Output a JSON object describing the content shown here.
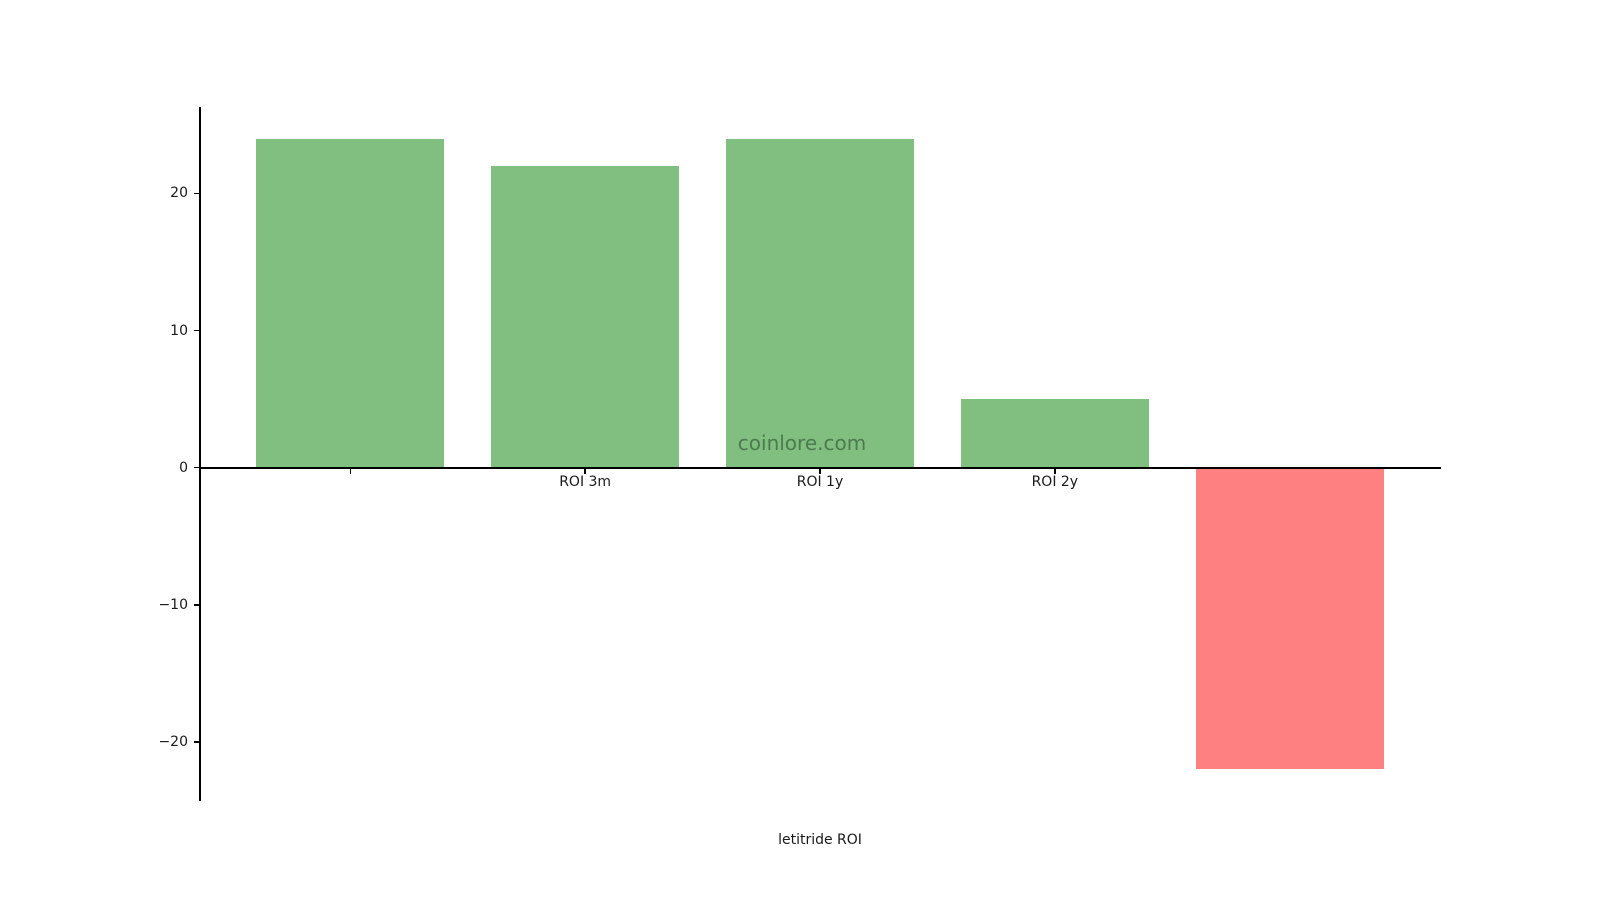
{
  "watermark": "coinlore.com",
  "chart_data": {
    "type": "bar",
    "title": "letitride ROI",
    "categories": [
      "",
      "ROI 3m",
      "ROI 1y",
      "ROI 2y",
      ""
    ],
    "values": [
      24,
      22,
      24,
      5,
      -22
    ],
    "bar_colors": [
      "#80bf80",
      "#80bf80",
      "#80bf80",
      "#80bf80",
      "#ff8080"
    ],
    "positive_color": "#80bf80",
    "negative_color": "#ff8080",
    "yticks": [
      20,
      10,
      0,
      -10,
      -20
    ],
    "ylim": [
      -24.3,
      26.3
    ],
    "xlim": [
      -0.64,
      4.64
    ],
    "bar_width": 0.8,
    "grid": false,
    "legend": "none",
    "xlabel": "letitride ROI",
    "ylabel": "",
    "axis_color": "#000000",
    "tick_label_color": "#1a1a1a",
    "watermark_color": "#4c7b4e"
  }
}
